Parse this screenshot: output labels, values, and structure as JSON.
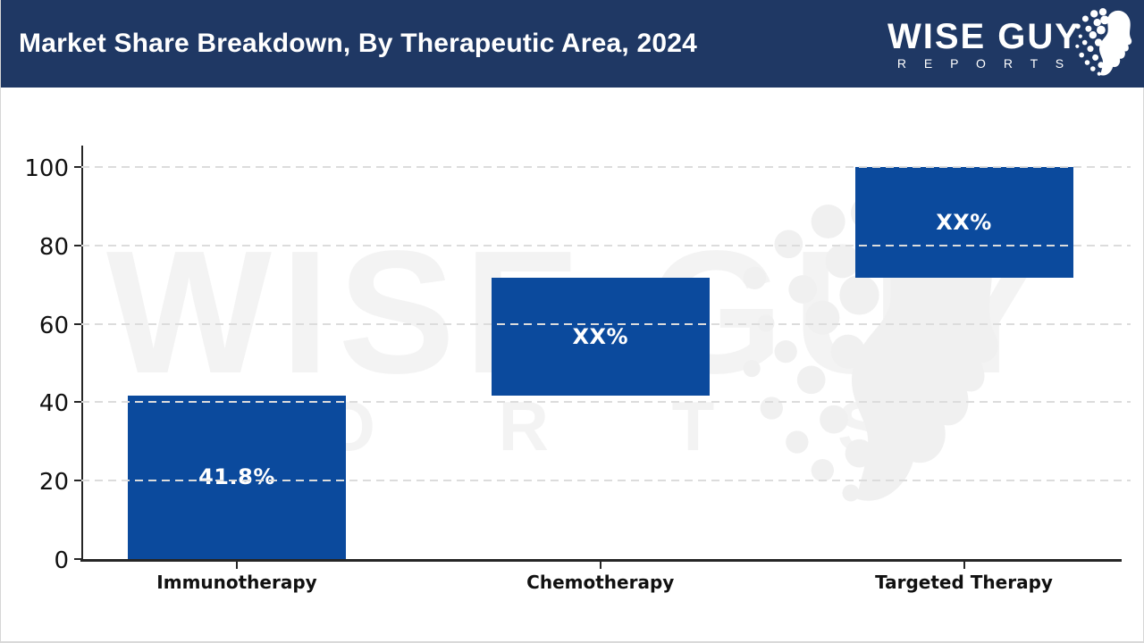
{
  "header": {
    "title": "Market Share Breakdown, By Therapeutic Area, 2024",
    "logo": {
      "line1": "WISE GUY",
      "line2": "R E P O R T S"
    }
  },
  "watermark": {
    "line1": "WISE GUY",
    "line2": "P O R T S"
  },
  "colors": {
    "header_bg": "#1f3864",
    "bar": "#0b4a9d",
    "bar_label": "#ffffff",
    "axis": "#262626",
    "grid": "#dcdcdc",
    "watermark": "#f3f3f3"
  },
  "chart_data": {
    "type": "bar",
    "subtype": "floating-waterfall",
    "title": "Market Share Breakdown, By Therapeutic Area, 2024",
    "categories": [
      "Immunotherapy",
      "Chemotherapy",
      "Targeted Therapy"
    ],
    "bars": [
      {
        "category": "Immunotherapy",
        "label": "41.8%",
        "start": 0,
        "end": 41.8
      },
      {
        "category": "Chemotherapy",
        "label": "XX%",
        "start": 41.8,
        "end": 71.8
      },
      {
        "category": "Targeted Therapy",
        "label": "XX%",
        "start": 71.8,
        "end": 100
      }
    ],
    "ylabel": "",
    "xlabel": "",
    "ylim": [
      0,
      100
    ],
    "yticks": [
      0,
      20,
      40,
      60,
      80,
      100
    ],
    "grid": "horizontal dashed",
    "legend": "none"
  }
}
